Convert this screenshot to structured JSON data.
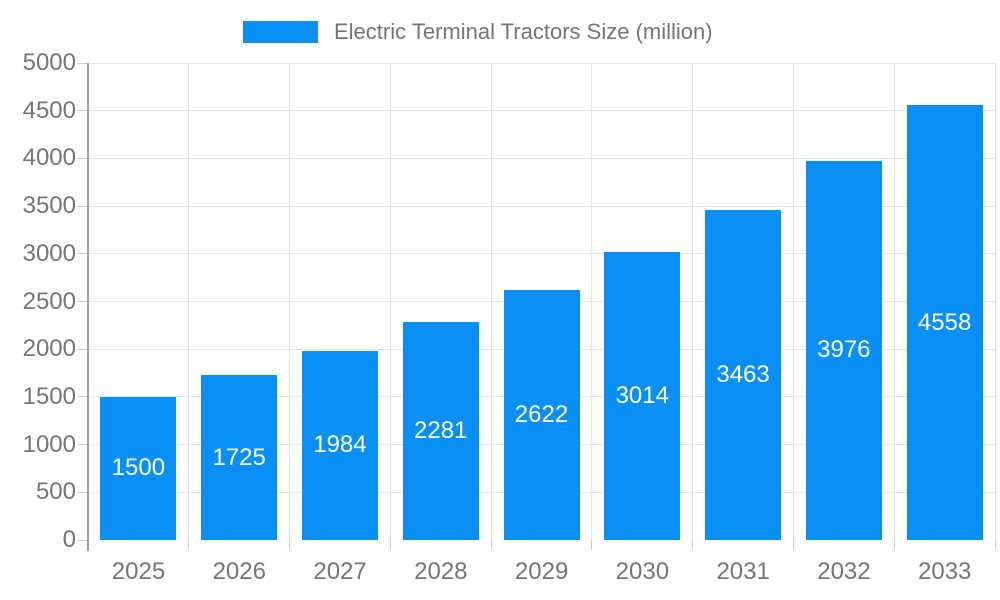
{
  "legend": {
    "label": "Electric Terminal Tractors Size (million)"
  },
  "colors": {
    "bar": "#0a8ff5",
    "bar_label": "#ffffff",
    "axis_text": "#757575",
    "legend_text": "#757575",
    "grid": "#e5e5e5",
    "tick": "#cccccc",
    "axis_line": "#9e9e9e",
    "background": "#ffffff"
  },
  "chart_data": {
    "type": "bar",
    "title": "Electric Terminal Tractors Size (million)",
    "categories": [
      "2025",
      "2026",
      "2027",
      "2028",
      "2029",
      "2030",
      "2031",
      "2032",
      "2033"
    ],
    "values": [
      1500,
      1725,
      1984,
      2281,
      2622,
      3014,
      3463,
      3976,
      4558
    ],
    "xlabel": "",
    "ylabel": "",
    "ylim": [
      0,
      5000
    ],
    "ytick_step": 500,
    "grid": true,
    "legend_position": "top-center",
    "bar_value_labels": "inside-center"
  }
}
